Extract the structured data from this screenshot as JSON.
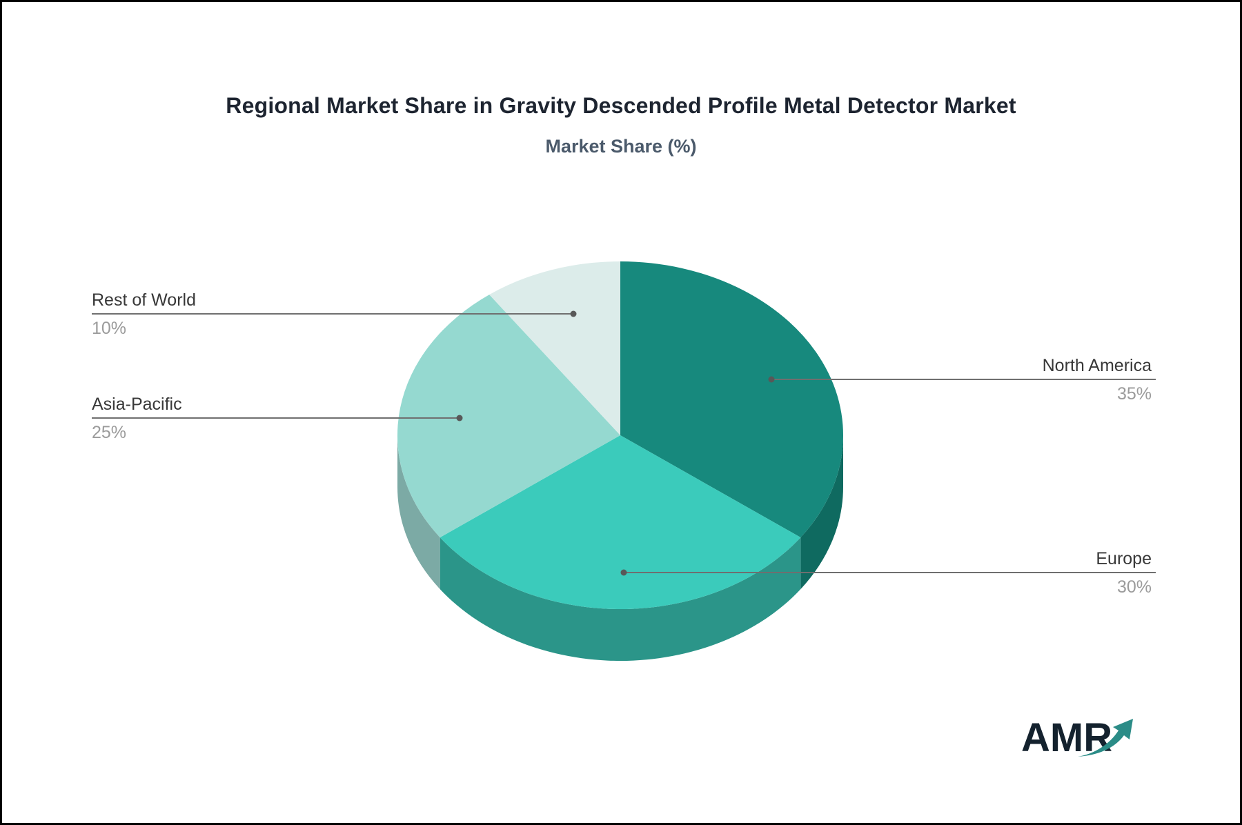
{
  "header": {
    "title": "Regional Market Share in Gravity Descended Profile Metal Detector Market",
    "subtitle": "Market Share (%)"
  },
  "chart_data": {
    "type": "pie",
    "title": "Regional Market Share in Gravity Descended Profile Metal Detector Market",
    "subtitle": "Market Share (%)",
    "style": "3d-pie",
    "start_angle_deg": 0,
    "direction": "clockwise",
    "legend_position": "callout-labels",
    "segments": [
      {
        "label": "North America",
        "value": 35,
        "display": "35%",
        "color": "#17897d",
        "side_color": "#0f6a60"
      },
      {
        "label": "Europe",
        "value": 30,
        "display": "30%",
        "color": "#3bcbbb",
        "side_color": "#2b9589"
      },
      {
        "label": "Asia-Pacific",
        "value": 25,
        "display": "25%",
        "color": "#95d9d0",
        "side_color": "#7caaa5"
      },
      {
        "label": "Rest of World",
        "value": 10,
        "display": "10%",
        "color": "#dcecea",
        "side_color": "#c2d8d4"
      }
    ]
  },
  "colors": {
    "background": "#ffffff",
    "leader_line": "#6f6f6f",
    "leader_dot": "#585858",
    "label_text": "#383838",
    "percent_text": "#9b9b9b",
    "title_text": "#1d2430",
    "subtitle_text": "#4b5a6b"
  },
  "logo": {
    "text": "AMR",
    "text_color": "#14222e",
    "arrow_color": "#2b8c87"
  }
}
